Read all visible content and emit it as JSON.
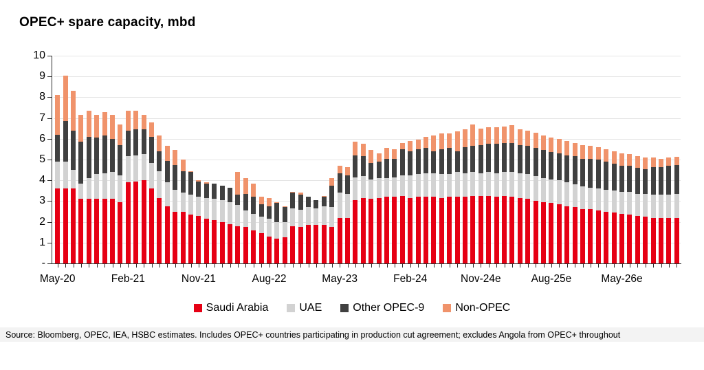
{
  "title": "OPEC+ spare capacity, mbd",
  "source_note": "Source: Bloomberg, OPEC, IEA, HSBC estimates. Includes OPEC+ countries participating in production cut agreement; excludes Angola from OPEC+ throughout",
  "colors": {
    "saudi_arabia": "#e60014",
    "uae": "#d2d2d2",
    "other_opec9": "#404040",
    "non_opec": "#f0936b",
    "gridline": "#e4e4e4",
    "axis": "#2a2a2a",
    "source_background": "#f3f3f3"
  },
  "chart_data": {
    "type": "bar",
    "stacked": true,
    "title": "OPEC+ spare capacity, mbd",
    "xlabel": "",
    "ylabel": "mbd",
    "ylim": [
      0,
      10
    ],
    "grid": true,
    "legend_position": "bottom",
    "ytick_labels": [
      "-",
      "1",
      "2",
      "3",
      "4",
      "5",
      "6",
      "7",
      "8",
      "9",
      "10"
    ],
    "categories": [
      "May-20",
      "Jun-20",
      "Jul-20",
      "Aug-20",
      "Sep-20",
      "Oct-20",
      "Nov-20",
      "Dec-20",
      "Jan-21",
      "Feb-21",
      "Mar-21",
      "Apr-21",
      "May-21",
      "Jun-21",
      "Jul-21",
      "Aug-21",
      "Sep-21",
      "Oct-21",
      "Nov-21",
      "Dec-21",
      "Jan-22",
      "Feb-22",
      "Mar-22",
      "Apr-22",
      "May-22",
      "Jun-22",
      "Jul-22",
      "Aug-22",
      "Sep-22",
      "Oct-22",
      "Nov-22",
      "Dec-22",
      "Jan-23",
      "Feb-23",
      "Mar-23",
      "Apr-23",
      "May-23",
      "Jun-23",
      "Jul-23",
      "Aug-23",
      "Sep-23",
      "Oct-23",
      "Nov-23",
      "Dec-23",
      "Jan-24",
      "Feb-24",
      "Mar-24",
      "Apr-24",
      "May-24",
      "Jun-24",
      "Jul-24",
      "Aug-24",
      "Sep-24",
      "Oct-24",
      "Nov-24e",
      "Dec-24e",
      "Jan-25e",
      "Feb-25e",
      "Mar-25e",
      "Apr-25e",
      "May-25e",
      "Jun-25e",
      "Jul-25e",
      "Aug-25e",
      "Sep-25e",
      "Oct-25e",
      "Nov-25e",
      "Dec-25e",
      "Jan-26e",
      "Feb-26e",
      "Mar-26e",
      "Apr-26e",
      "May-26e",
      "Jun-26e",
      "Jul-26e",
      "Aug-26e",
      "Sep-26e",
      "Oct-26e",
      "Nov-26e",
      "Dec-26e"
    ],
    "xtick_indices": [
      0,
      9,
      18,
      27,
      36,
      45,
      54,
      63,
      72
    ],
    "xtick_labels": [
      "May-20",
      "Feb-21",
      "Nov-21",
      "Aug-22",
      "May-23",
      "Feb-24",
      "Nov-24e",
      "Aug-25e",
      "May-26e"
    ],
    "series": [
      {
        "name": "Saudi Arabia",
        "color": "#e60014",
        "values": [
          3.6,
          3.6,
          3.6,
          3.1,
          3.1,
          3.1,
          3.1,
          3.1,
          2.95,
          3.9,
          3.95,
          4.0,
          3.6,
          3.15,
          2.75,
          2.5,
          2.5,
          2.35,
          2.3,
          2.15,
          2.1,
          2.0,
          1.9,
          1.8,
          1.75,
          1.6,
          1.45,
          1.3,
          1.2,
          1.25,
          1.8,
          1.75,
          1.85,
          1.85,
          1.85,
          1.75,
          2.2,
          2.2,
          3.05,
          3.15,
          3.1,
          3.15,
          3.2,
          3.2,
          3.25,
          3.15,
          3.2,
          3.2,
          3.2,
          3.15,
          3.2,
          3.2,
          3.2,
          3.25,
          3.25,
          3.25,
          3.2,
          3.25,
          3.2,
          3.15,
          3.1,
          3.0,
          2.95,
          2.9,
          2.85,
          2.75,
          2.7,
          2.6,
          2.6,
          2.55,
          2.5,
          2.45,
          2.4,
          2.35,
          2.3,
          2.25,
          2.2,
          2.2,
          2.2,
          2.2
        ]
      },
      {
        "name": "UAE",
        "color": "#d2d2d2",
        "values": [
          1.3,
          1.3,
          0.9,
          0.75,
          1.0,
          1.2,
          1.25,
          1.3,
          1.3,
          1.25,
          1.25,
          1.25,
          1.25,
          1.3,
          1.15,
          1.05,
          0.9,
          0.95,
          0.9,
          1.0,
          1.0,
          1.05,
          1.05,
          1.0,
          0.8,
          0.8,
          0.8,
          0.85,
          0.8,
          0.75,
          0.85,
          0.85,
          0.85,
          0.8,
          0.9,
          0.95,
          1.2,
          1.15,
          1.1,
          1.05,
          0.95,
          0.95,
          0.9,
          0.95,
          1.0,
          1.1,
          1.1,
          1.15,
          1.15,
          1.15,
          1.1,
          1.2,
          1.15,
          1.15,
          1.1,
          1.15,
          1.15,
          1.15,
          1.2,
          1.2,
          1.2,
          1.2,
          1.15,
          1.15,
          1.15,
          1.15,
          1.1,
          1.1,
          1.05,
          1.05,
          1.05,
          1.05,
          1.05,
          1.1,
          1.05,
          1.1,
          1.1,
          1.1,
          1.1,
          1.15
        ]
      },
      {
        "name": "Other OPEC-9",
        "color": "#404040",
        "values": [
          1.3,
          1.95,
          1.9,
          2.0,
          2.0,
          1.75,
          1.8,
          1.6,
          1.45,
          1.25,
          1.25,
          1.2,
          1.25,
          0.95,
          1.05,
          1.2,
          1.05,
          1.1,
          0.75,
          0.7,
          0.75,
          0.7,
          0.7,
          0.5,
          0.8,
          0.8,
          0.6,
          0.6,
          0.9,
          0.7,
          0.75,
          0.7,
          0.5,
          0.4,
          0.45,
          1.05,
          0.95,
          0.9,
          1.05,
          0.95,
          0.8,
          0.8,
          0.95,
          0.9,
          1.25,
          1.15,
          1.2,
          1.2,
          1.05,
          1.2,
          1.25,
          1.0,
          1.25,
          1.25,
          1.35,
          1.35,
          1.4,
          1.4,
          1.4,
          1.35,
          1.35,
          1.35,
          1.35,
          1.3,
          1.3,
          1.3,
          1.35,
          1.35,
          1.4,
          1.4,
          1.35,
          1.3,
          1.25,
          1.25,
          1.25,
          1.2,
          1.35,
          1.35,
          1.4,
          1.4
        ]
      },
      {
        "name": "Non-OPEC",
        "color": "#f0936b",
        "values": [
          1.9,
          2.2,
          1.9,
          1.3,
          1.25,
          1.1,
          1.15,
          1.15,
          1.0,
          0.95,
          0.9,
          0.7,
          0.7,
          0.75,
          0.7,
          0.7,
          0.55,
          0.05,
          0.05,
          0.05,
          0.0,
          0.0,
          0.0,
          1.1,
          0.75,
          0.65,
          0.35,
          0.4,
          0.05,
          0.05,
          0.05,
          0.1,
          0.0,
          0.0,
          0.05,
          0.35,
          0.35,
          0.4,
          0.65,
          0.6,
          0.6,
          0.4,
          0.5,
          0.45,
          0.3,
          0.5,
          0.45,
          0.55,
          0.75,
          0.75,
          0.7,
          0.95,
          0.85,
          1.05,
          0.8,
          0.8,
          0.8,
          0.8,
          0.85,
          0.75,
          0.75,
          0.75,
          0.7,
          0.7,
          0.7,
          0.7,
          0.65,
          0.65,
          0.6,
          0.6,
          0.6,
          0.6,
          0.6,
          0.55,
          0.55,
          0.55,
          0.45,
          0.4,
          0.4,
          0.4
        ]
      }
    ]
  }
}
